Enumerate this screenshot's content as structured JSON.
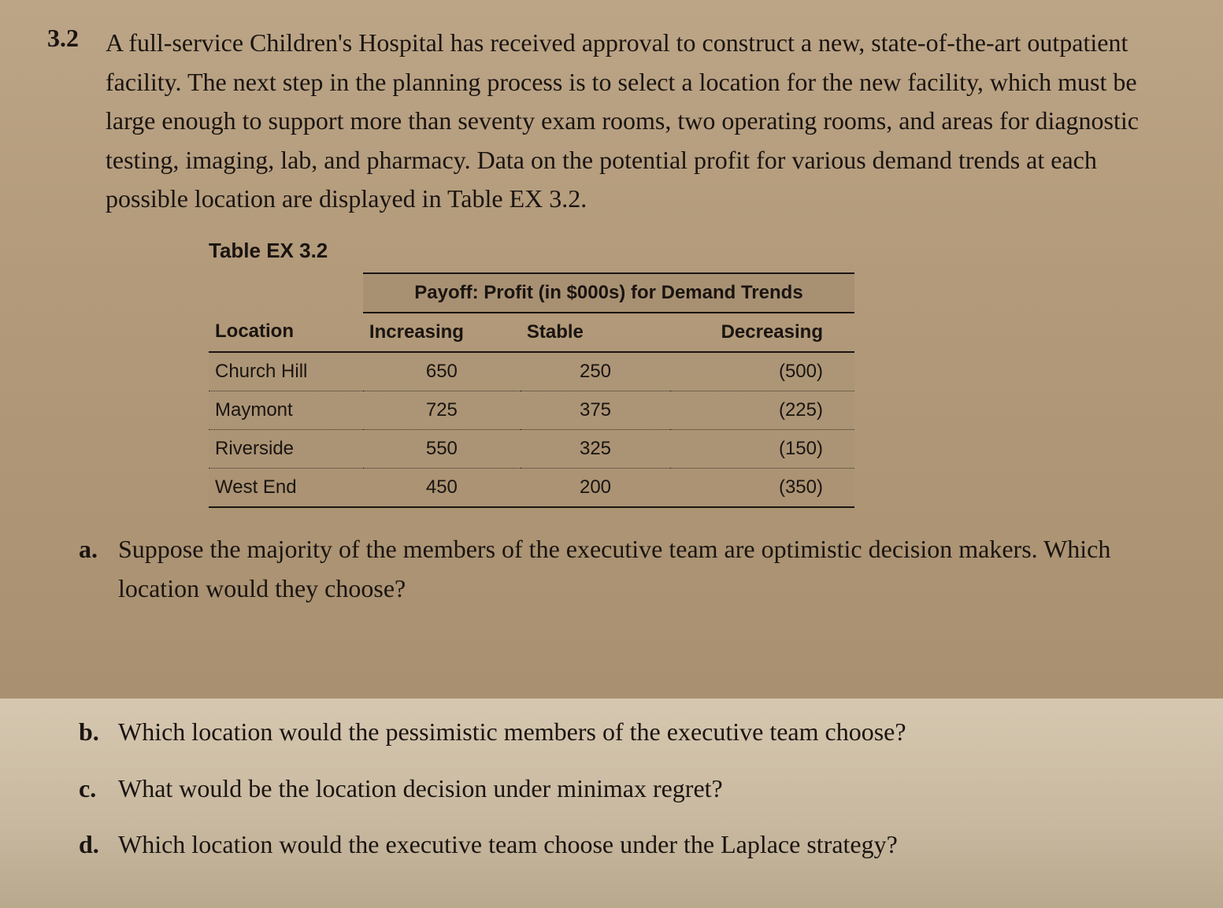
{
  "problem": {
    "number": "3.2",
    "text": "A full-service Children's Hospital has received approval to construct a new, state-of-the-art outpatient facility. The next step in the planning process is to select a location for the new facility, which must be large enough to support more than seventy exam rooms, two operating rooms, and areas for diagnostic testing, imaging, lab, and pharmacy. Data on the potential profit for various demand trends at each possible location are displayed in Table EX 3.2."
  },
  "table": {
    "caption": "Table EX 3.2",
    "group_header": "Payoff: Profit (in $000s) for Demand Trends",
    "columns": [
      "Location",
      "Increasing",
      "Stable",
      "Decreasing"
    ],
    "rows": [
      {
        "location": "Church Hill",
        "increasing": "650",
        "stable": "250",
        "decreasing": "(500)"
      },
      {
        "location": "Maymont",
        "increasing": "725",
        "stable": "375",
        "decreasing": "(225)"
      },
      {
        "location": "Riverside",
        "increasing": "550",
        "stable": "325",
        "decreasing": "(150)"
      },
      {
        "location": "West End",
        "increasing": "450",
        "stable": "200",
        "decreasing": "(350)"
      }
    ]
  },
  "questions": {
    "a": "Suppose the majority of the members of the executive team are optimistic decision makers. Which location would they choose?",
    "b": "Which location would the pessimistic members of the executive team choose?",
    "c": "What would be the location decision under minimax regret?",
    "d": "Which location would the executive team choose under the Laplace strategy?"
  },
  "letters": {
    "a": "a.",
    "b": "b.",
    "c": "c.",
    "d": "d."
  },
  "style": {
    "top_bg": "#b09878",
    "bottom_bg": "#d0c0a8",
    "text_color": "#1a1410",
    "border_color": "#1a1410",
    "body_fontsize": 32,
    "table_fontsize": 24
  }
}
